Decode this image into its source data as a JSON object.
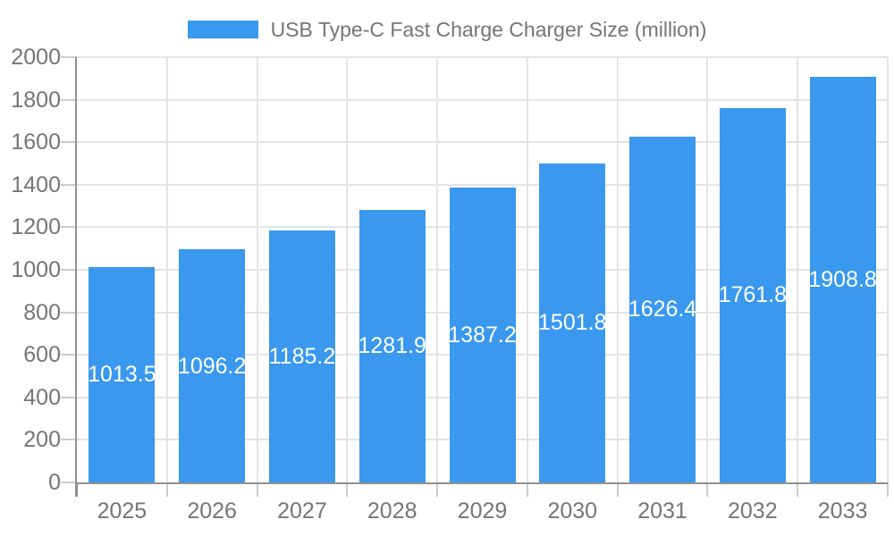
{
  "legend": {
    "position": "top",
    "label": "USB Type-C Fast Charge Charger Size (million)"
  },
  "chart_data": {
    "type": "bar",
    "title": "USB Type-C Fast Charge Charger Size (million)",
    "series_name": "USB Type-C Fast Charge Charger Size (million)",
    "categories": [
      "2025",
      "2026",
      "2027",
      "2028",
      "2029",
      "2030",
      "2031",
      "2032",
      "2033"
    ],
    "values": [
      1013.5,
      1096.2,
      1185.2,
      1281.9,
      1387.2,
      1501.8,
      1626.4,
      1761.8,
      1908.8
    ],
    "data_labels": [
      "1013.5",
      "1096.2",
      "1185.2",
      "1281.9",
      "1387.2",
      "1501.8",
      "1626.4",
      "1761.8",
      "1908.8"
    ],
    "xlabel": "",
    "ylabel": "",
    "ylim": [
      0,
      2000
    ],
    "yticks": [
      0,
      200,
      400,
      600,
      800,
      1000,
      1200,
      1400,
      1600,
      1800,
      2000
    ],
    "grid": true,
    "legend_position": "top"
  },
  "colors": {
    "bar": "#3A99EE",
    "value_label": "#FFFFFF",
    "axis_line": "#909090",
    "grid_line": "#E4E4E4",
    "tick_line": "#CCCCCC",
    "text": "#757575"
  }
}
